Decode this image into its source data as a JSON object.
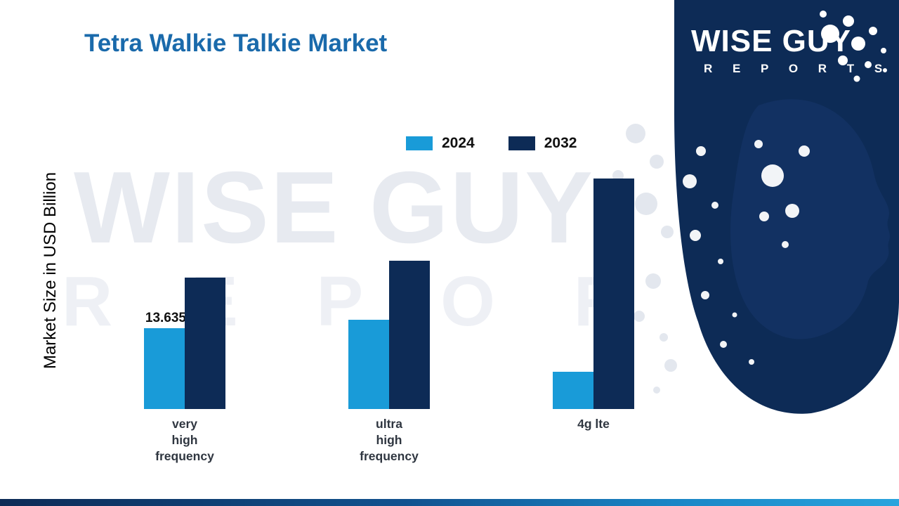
{
  "page": {
    "title": "Tetra Walkie Talkie Market"
  },
  "logo": {
    "name_line": "WISE GUY",
    "reports_line": "R E P O R T S"
  },
  "watermark": {
    "line1": "WISE GUY",
    "line2": "R E P O R T S"
  },
  "axis": {
    "y_label": "Market Size in USD Billion"
  },
  "legend": {
    "items": [
      {
        "label": "2024",
        "color": "#199bd8"
      },
      {
        "label": "2032",
        "color": "#0d2b56"
      }
    ]
  },
  "chart_data": {
    "type": "bar",
    "title": "Tetra Walkie Talkie Market",
    "xlabel": "",
    "ylabel": "Market Size in USD Billion",
    "units": "USD Billion",
    "categories": [
      "very high frequency",
      "ultra high frequency",
      "4g lte"
    ],
    "category_label_lines": [
      [
        "very",
        "high",
        "frequency"
      ],
      [
        "ultra",
        "high",
        "frequency"
      ],
      [
        "4g lte"
      ]
    ],
    "series": [
      {
        "name": "2024",
        "color": "#199bd8",
        "values": [
          13.635,
          15.1,
          6.3
        ]
      },
      {
        "name": "2032",
        "color": "#0d2b56",
        "values": [
          22.2,
          25.0,
          38.9
        ]
      }
    ],
    "annotations": [
      {
        "series": "2024",
        "category_index": 0,
        "text": "13.635"
      }
    ],
    "ylim": [
      0,
      40
    ],
    "grid": false,
    "legend_position": "top-center"
  },
  "colors": {
    "title_text": "#1a6aab",
    "corner_bg": "#0d2b56",
    "bar_2024": "#199bd8",
    "bar_2032": "#0d2b56",
    "footer_gradient_left": "#0d2b56",
    "footer_gradient_right": "#2aa4dd"
  }
}
